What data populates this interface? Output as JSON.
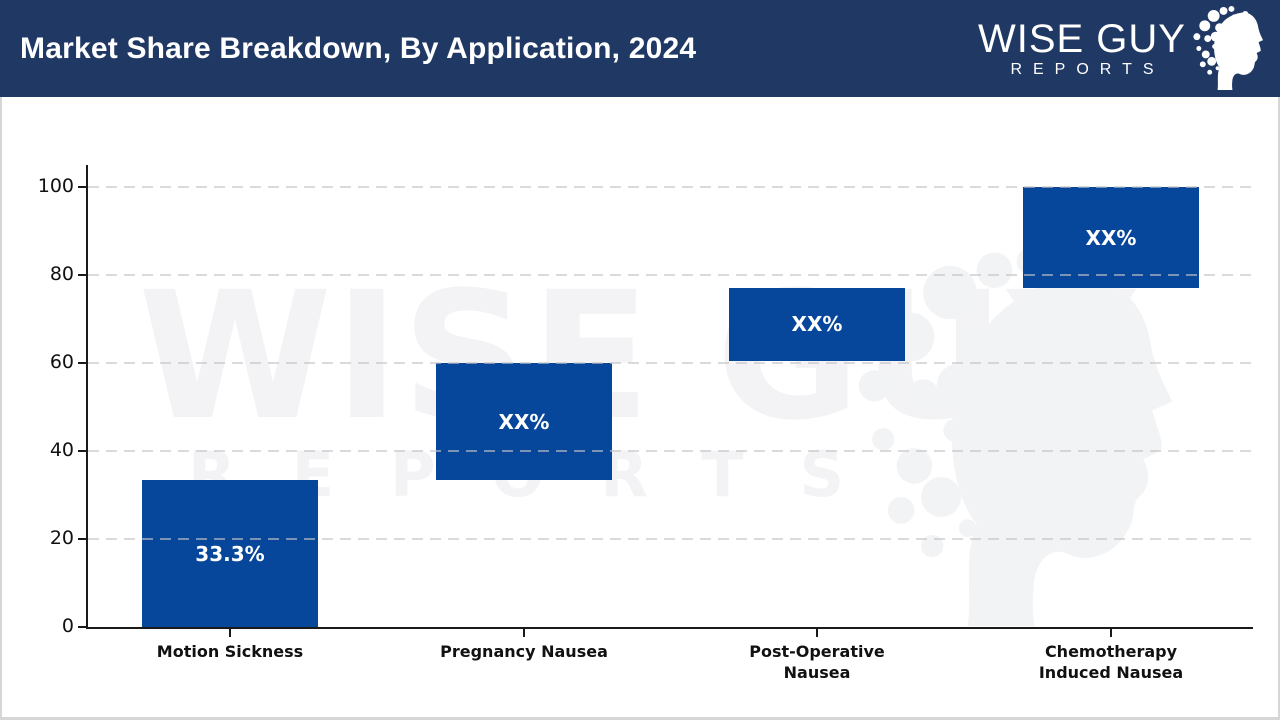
{
  "header": {
    "title": "Market Share Breakdown, By Application, 2024",
    "logo": {
      "brand_line1": "WISE GUY",
      "brand_line2": "REPORTS",
      "icon": "dotted-head-profile-icon"
    }
  },
  "watermark": {
    "line1": "WISE GUY",
    "line2": "REPORTS",
    "icon": "dotted-head-profile-icon"
  },
  "chart_data": {
    "type": "bar",
    "subtype": "waterfall",
    "title": "Market Share Breakdown, By Application, 2024",
    "xlabel": "",
    "ylabel": "",
    "categories": [
      "Motion Sickness",
      "Pregnancy Nausea",
      "Post-Operative\nNausea",
      "Chemotherapy\nInduced Nausea"
    ],
    "segments": [
      {
        "category": "Motion Sickness",
        "start": 0,
        "end": 33.3,
        "label": "33.3%"
      },
      {
        "category": "Pregnancy Nausea",
        "start": 33.3,
        "end": 60,
        "label": "XX%"
      },
      {
        "category": "Post-Operative Nausea",
        "start": 60.5,
        "end": 77,
        "label": "XX%"
      },
      {
        "category": "Chemotherapy Induced Nausea",
        "start": 77,
        "end": 100,
        "label": "XX%"
      }
    ],
    "yticks": [
      0,
      20,
      40,
      60,
      80,
      100
    ],
    "ylim": [
      0,
      105
    ],
    "grid": "horizontal-dashed",
    "legend": "none",
    "bar_color": "#07479b",
    "bar_label_color": "#ffffff",
    "axis_color": "#1a1a1a",
    "gridline_color": "#d9d9d9"
  },
  "colors": {
    "header_background": "#1f3864",
    "header_text": "#ffffff",
    "body_background": "#ffffff",
    "watermark": "#f3f3f5",
    "frame_border": "#d6d6d6"
  }
}
